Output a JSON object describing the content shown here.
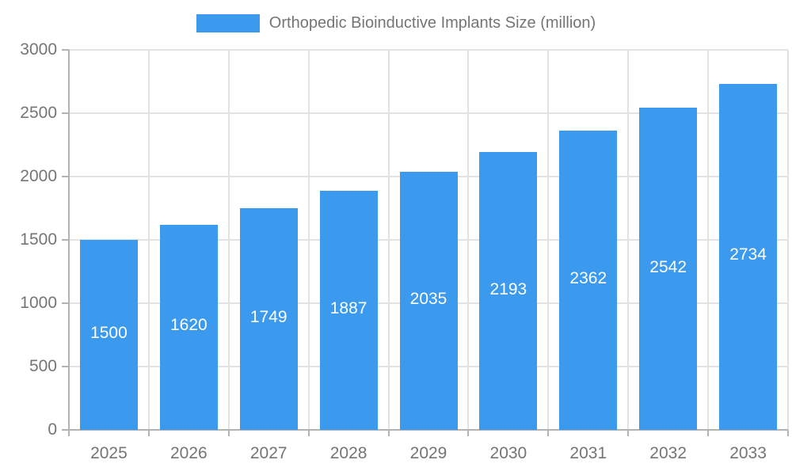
{
  "chart_data": {
    "type": "bar",
    "title": "Orthopedic Bioinductive Implants Size (million)",
    "legend_label": "Orthopedic Bioinductive Implants Size (million)",
    "legend_position": "top-center",
    "categories": [
      "2025",
      "2026",
      "2027",
      "2028",
      "2029",
      "2030",
      "2031",
      "2032",
      "2033"
    ],
    "series": [
      {
        "name": "Orthopedic Bioinductive Implants Size (million)",
        "values": [
          1500,
          1620,
          1749,
          1887,
          2035,
          2193,
          2362,
          2542,
          2734
        ]
      }
    ],
    "bar_labels_visible": true,
    "xlabel": "",
    "ylabel": "",
    "ylim": [
      0,
      3000
    ],
    "yticks": [
      0,
      500,
      1000,
      1500,
      2000,
      2500,
      3000
    ],
    "grid": true,
    "colors": {
      "bar": "#3b9aee",
      "bar_label_text": "#ffffff",
      "axis_text": "#757575",
      "legend_text": "#757575",
      "gridline": "#e2e2e2",
      "axis_line": "#b3b3b3",
      "background": "#ffffff"
    }
  }
}
